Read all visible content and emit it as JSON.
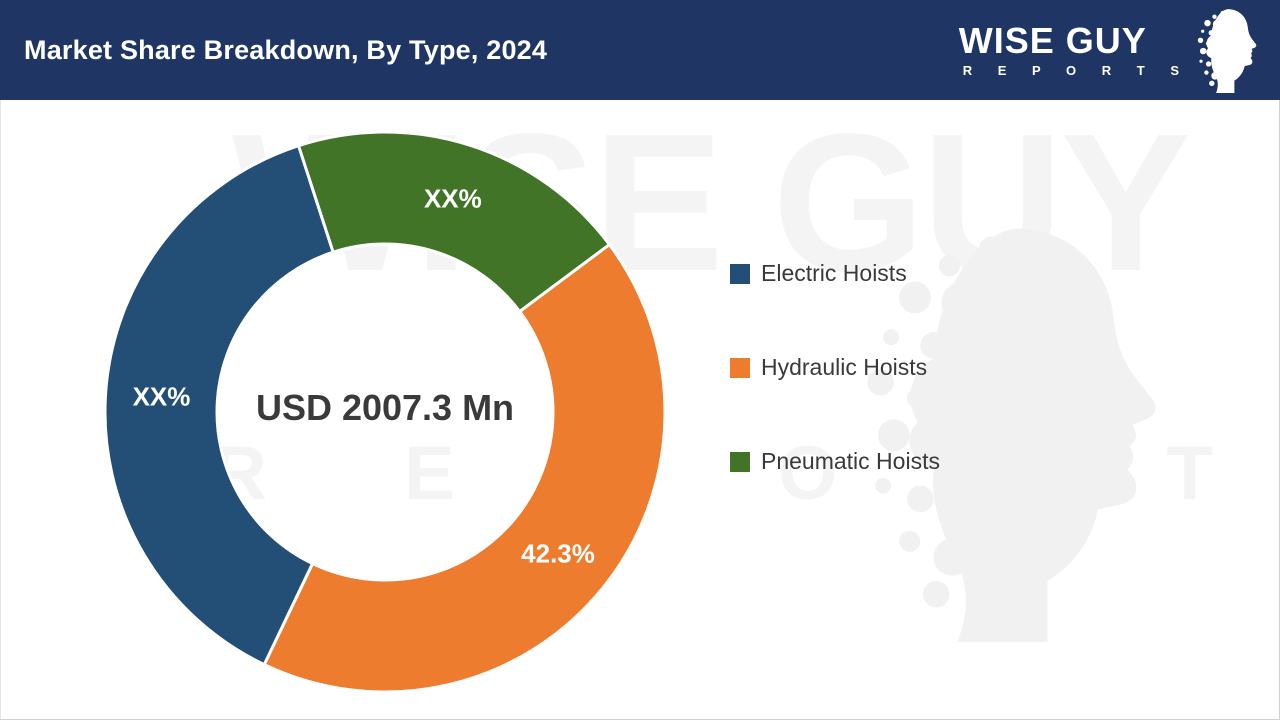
{
  "header": {
    "title": "Market Share Breakdown, By Type, 2024",
    "logo": {
      "line1": "WISE GUY",
      "line2": "REPORTS"
    }
  },
  "chart_data": {
    "type": "donut",
    "title": "Market Share Breakdown, By Type, 2024",
    "center_label": "USD 2007.3 Mn",
    "start_angle_deg": -18,
    "unit": "percent of market share",
    "segments": [
      {
        "name": "Pneumatic Hoists",
        "value": 19.8,
        "label": "XX%",
        "color": "#427428"
      },
      {
        "name": "Hydraulic Hoists",
        "value": 42.3,
        "label": "42.3%",
        "color": "#ED7C2E"
      },
      {
        "name": "Electric Hoists",
        "value": 37.9,
        "label": "XX%",
        "color": "#234F76"
      }
    ]
  },
  "legend": {
    "items": [
      {
        "label": "Electric Hoists",
        "color": "#234F76"
      },
      {
        "label": "Hydraulic Hoists",
        "color": "#ED7C2E"
      },
      {
        "label": "Pneumatic Hoists",
        "color": "#427428"
      }
    ]
  },
  "watermark": {
    "line1": "WISE GUY",
    "line2": "REPORTS"
  }
}
